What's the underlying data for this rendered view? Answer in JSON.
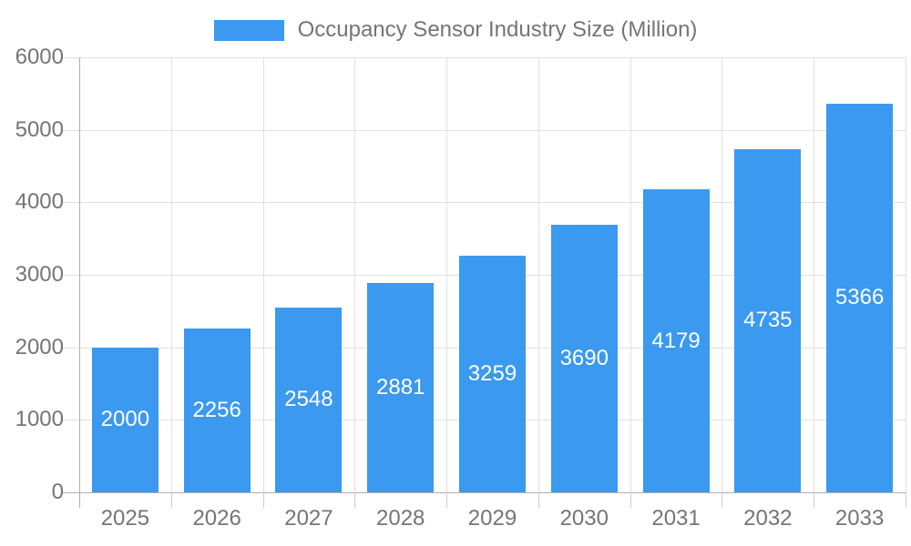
{
  "legend": {
    "series_label": "Occupancy Sensor Industry Size (Million)",
    "swatch_color": "#3b99f0"
  },
  "chart_data": {
    "type": "bar",
    "title": "Occupancy Sensor Industry Size (Million)",
    "categories": [
      "2025",
      "2026",
      "2027",
      "2028",
      "2029",
      "2030",
      "2031",
      "2032",
      "2033"
    ],
    "values": [
      2000,
      2256,
      2548,
      2881,
      3259,
      3690,
      4179,
      4735,
      5366
    ],
    "series_name": "Occupancy Sensor Industry Size (Million)",
    "xlabel": "",
    "ylabel": "",
    "ylim": [
      0,
      6000
    ],
    "yticks": [
      0,
      1000,
      2000,
      3000,
      4000,
      5000,
      6000
    ],
    "grid": true,
    "legend_position": "top",
    "data_labels_position": "inside-center",
    "bar_color": "#3b99f0",
    "value_label_color": "#ffffff",
    "axis_text_color": "#757575",
    "gridline_color": "#e0e0e0",
    "axis_line_color": "#b0b0b0"
  }
}
